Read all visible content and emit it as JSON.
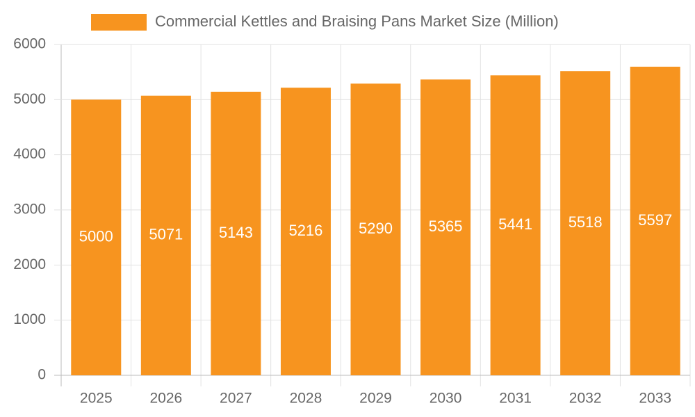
{
  "chart_data": {
    "type": "bar",
    "categories": [
      "2025",
      "2026",
      "2027",
      "2028",
      "2029",
      "2030",
      "2031",
      "2032",
      "2033"
    ],
    "series": [
      {
        "name": "Commercial Kettles and Braising Pans Market Size (Million)",
        "color": "#f7941f",
        "values": [
          5000,
          5071,
          5143,
          5216,
          5290,
          5365,
          5441,
          5518,
          5597
        ]
      }
    ],
    "ylim": [
      0,
      6000
    ],
    "yticks": [
      0,
      1000,
      2000,
      3000,
      4000,
      5000,
      6000
    ],
    "grid": true,
    "legend": "top",
    "data_labels": true
  }
}
